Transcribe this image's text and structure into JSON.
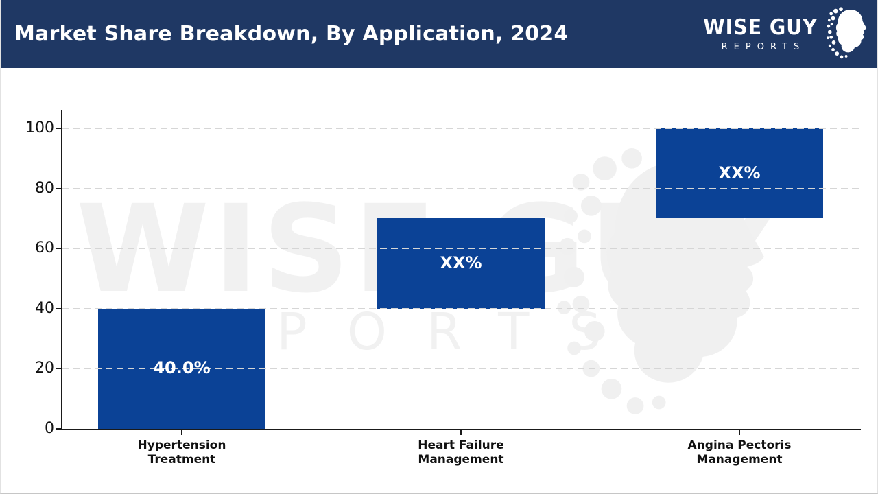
{
  "header": {
    "title": "Market Share Breakdown, By Application, 2024",
    "logo": {
      "wordmark": "WISE GUY",
      "subtext": "REPORTS"
    },
    "background_color": "#1f3864"
  },
  "watermark": {
    "wordmark": "WISE GUY",
    "subtext": "REPORTS"
  },
  "chart_data": {
    "type": "bar",
    "variant": "floating-segment-bars",
    "title": "Market Share Breakdown, By Application, 2024",
    "categories": [
      "Hypertension Treatment",
      "Heart Failure Management",
      "Angina Pectoris Management"
    ],
    "category_lines": [
      [
        "Hypertension",
        "Treatment"
      ],
      [
        "Heart Failure",
        "Management"
      ],
      [
        "Angina Pectoris",
        "Management"
      ]
    ],
    "segments": [
      {
        "start": 0,
        "end": 40,
        "label": "40.0%"
      },
      {
        "start": 40,
        "end": 70,
        "label": "XX%"
      },
      {
        "start": 70,
        "end": 100,
        "label": "XX%"
      }
    ],
    "yticks": [
      0,
      20,
      40,
      60,
      80,
      100
    ],
    "ylim": [
      0,
      106
    ],
    "xlabel": "",
    "ylabel": "",
    "grid": "horizontal-dashed",
    "legend": "none",
    "bar_color": "#0b4296",
    "bar_label_color": "#ffffff",
    "axis_color": "#1a1a1a",
    "gridline_color": "#d6d6d6"
  }
}
